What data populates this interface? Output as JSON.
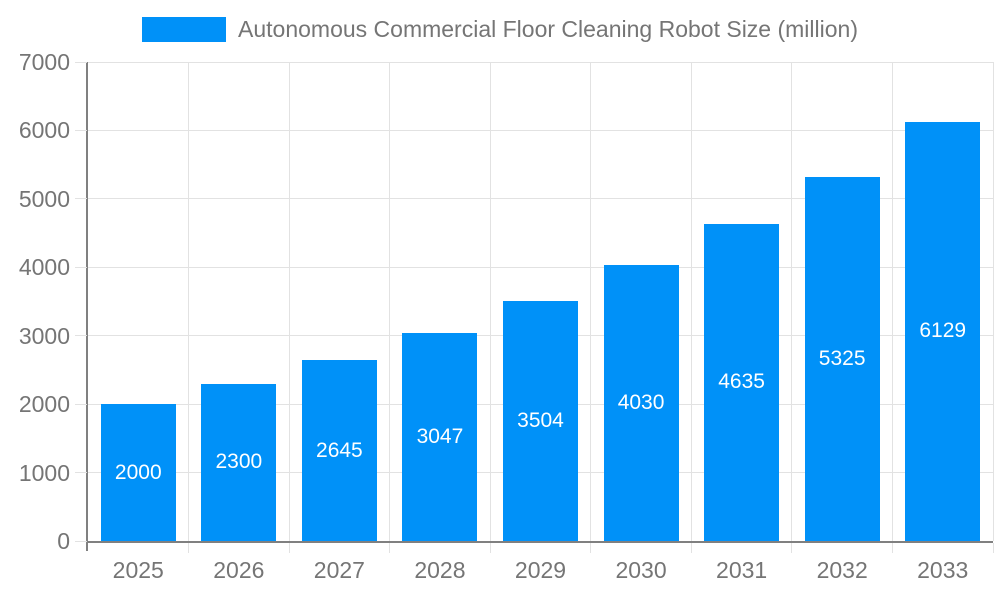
{
  "chart_data": {
    "type": "bar",
    "title": "",
    "legend": [
      "Autonomous Commercial Floor Cleaning Robot Size (million)"
    ],
    "legend_position": "top-center",
    "categories": [
      "2025",
      "2026",
      "2027",
      "2028",
      "2029",
      "2030",
      "2031",
      "2032",
      "2033"
    ],
    "series": [
      {
        "name": "Autonomous Commercial Floor Cleaning Robot Size (million)",
        "values": [
          2000,
          2300,
          2645,
          3047,
          3504,
          4030,
          4635,
          5325,
          6129
        ]
      }
    ],
    "value_labels_shown": true,
    "xlabel": "",
    "ylabel": "",
    "ylim": [
      0,
      7000
    ],
    "yticks": [
      0,
      1000,
      2000,
      3000,
      4000,
      5000,
      6000,
      7000
    ],
    "grid": true,
    "colors": {
      "bar": "#0091F8",
      "value_label": "#FFFFFF",
      "tick_label": "#757575",
      "legend_text": "#757575",
      "gridline": "#E2E2E2",
      "axis": "#808080",
      "background": "#FFFFFF"
    }
  }
}
